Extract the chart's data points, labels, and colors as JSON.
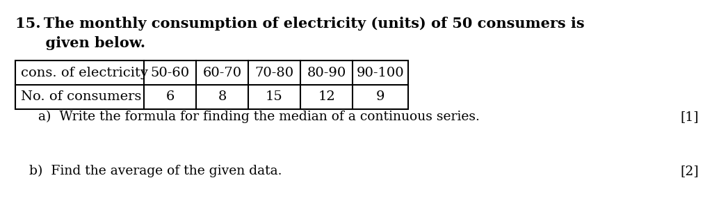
{
  "title_line1": "15. The monthly consumption of electricity (units) of 50 consumers is",
  "title_line2": "    given below.",
  "table_headers": [
    "cons. of electricity",
    "50-60",
    "60-70",
    "70-80",
    "80-90",
    "90-100"
  ],
  "table_row": [
    "No. of consumers",
    "6",
    "8",
    "15",
    "12",
    "9"
  ],
  "question_a": "a)  Write the formula for finding the median of a continuous series.",
  "mark_a": "[1]",
  "question_b": "b)  Find the average of the given data.",
  "mark_b": "[2]",
  "bg_color": "#ffffff",
  "text_color": "#000000",
  "font_size_title": 15,
  "font_size_table": 14,
  "font_size_question": 13.5
}
